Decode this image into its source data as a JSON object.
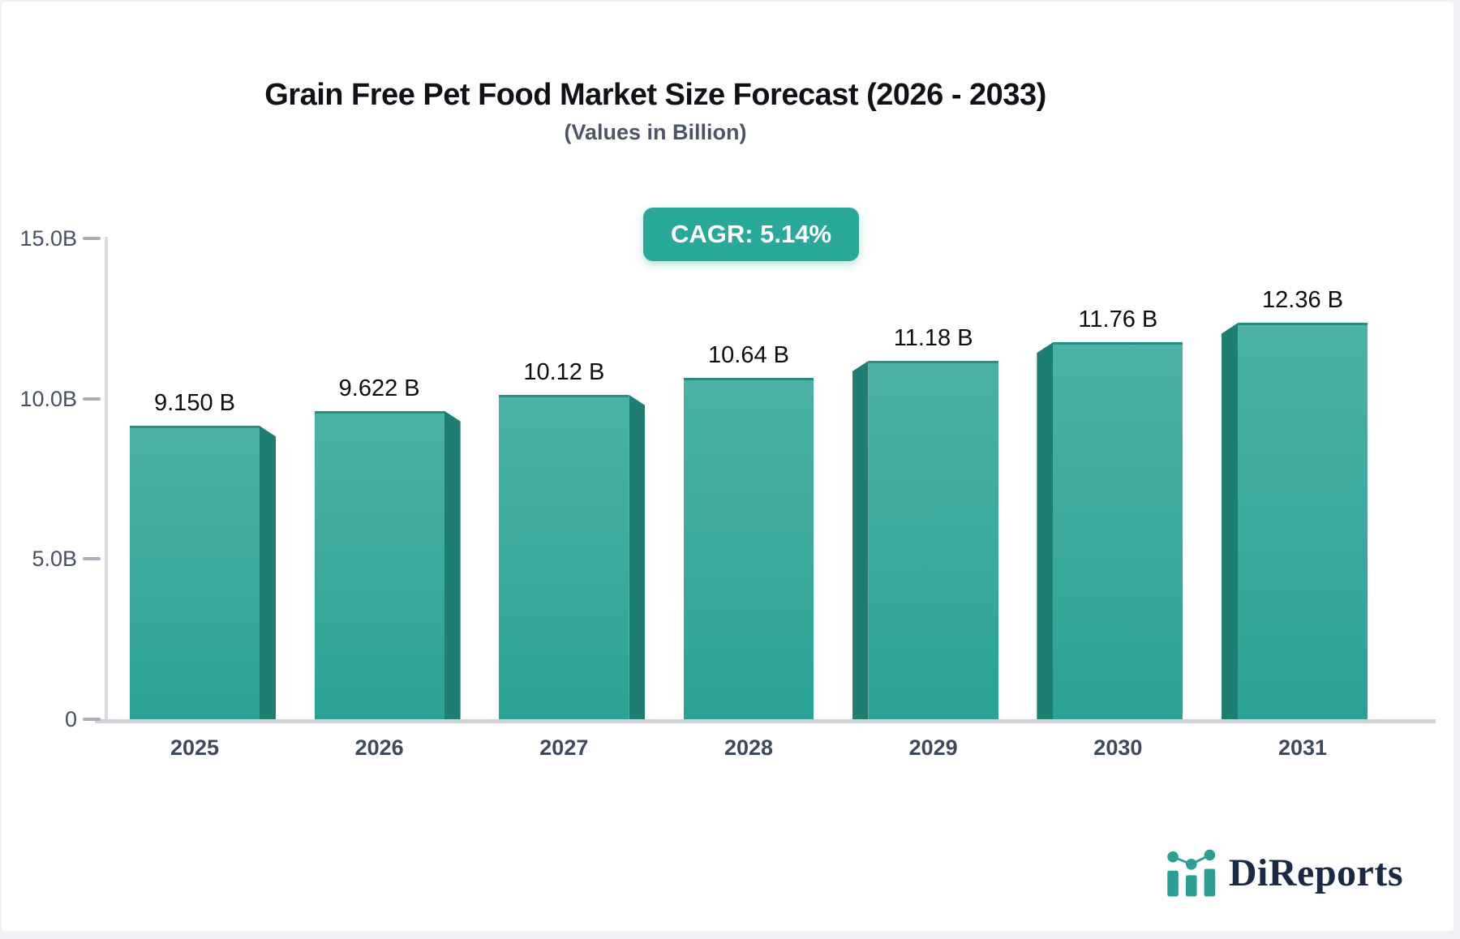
{
  "header": {
    "title": "Grain Free Pet Food Market Size Forecast (2026 - 2033)",
    "subtitle": "(Values in Billion)",
    "cagr_badge": "CAGR: 5.14%"
  },
  "chart_data": {
    "type": "bar",
    "title": "Grain Free Pet Food Market Size Forecast (2026 - 2033)",
    "subtitle": "(Values in Billion)",
    "cagr_label": "CAGR: 5.14%",
    "categories": [
      "2025",
      "2026",
      "2027",
      "2028",
      "2029",
      "2030",
      "2031"
    ],
    "values": [
      9.15,
      9.622,
      10.12,
      10.64,
      11.18,
      11.76,
      12.36
    ],
    "points": [
      {
        "year": "2025",
        "value": 9.15,
        "label": "9.150 B"
      },
      {
        "year": "2026",
        "value": 9.622,
        "label": "9.622 B"
      },
      {
        "year": "2027",
        "value": 10.12,
        "label": "10.12 B"
      },
      {
        "year": "2028",
        "value": 10.64,
        "label": "10.64 B"
      },
      {
        "year": "2029",
        "value": 11.18,
        "label": "11.18 B"
      },
      {
        "year": "2030",
        "value": 11.76,
        "label": "11.76 B"
      },
      {
        "year": "2031",
        "value": 12.36,
        "label": "12.36 B"
      }
    ],
    "yticks": [
      {
        "label": "15.0B",
        "value": 15
      },
      {
        "label": "10.0B",
        "value": 10
      },
      {
        "label": "5.0B",
        "value": 5
      },
      {
        "label": "0",
        "value": 0
      }
    ],
    "ylim": [
      0,
      15
    ],
    "grid": false,
    "legend_position": "none",
    "bar_style": "3d-bevel"
  },
  "logo": {
    "text": "DiReports"
  },
  "colors": {
    "bar_face_top": "#4bb2a4",
    "bar_face_bottom": "#2ba294",
    "bar_top_edge": "#239182",
    "bar_side": "#1e7e71",
    "badge_bg": "#2aa89a",
    "axis_line": "#dadce1",
    "baseline": "#d0d3d9",
    "tick_dash": "#a8aeb8",
    "y_label": "#475063",
    "x_label": "#3e4a5c",
    "value_label": "#0d0d0d",
    "title_color": "#0f1116",
    "subtitle_color": "#4d5666",
    "logo_navy": "#1b2a44",
    "logo_teal": "#2d9e94",
    "card_bg": "#ffffff",
    "page_bg": "#eff1f4"
  }
}
